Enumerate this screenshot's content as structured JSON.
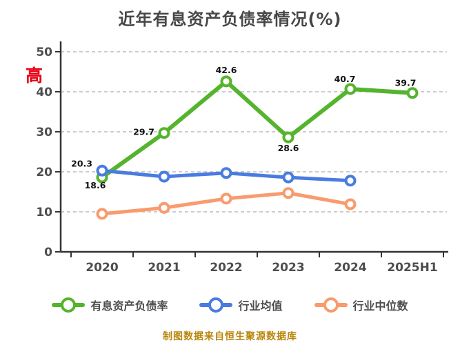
{
  "title": "近年有息资产负债率情况(%)",
  "y_axis_tag": {
    "text": "高",
    "color": "#e60012"
  },
  "caption": "制图数据来自恒生聚源数据库",
  "colors": {
    "title": "#474747",
    "axis": "#333333",
    "tick_text": "#4d4d4d",
    "grid": "#cccccc",
    "point_label": "#111111",
    "caption": "#b8860b"
  },
  "chart_data": {
    "type": "line",
    "title": "近年有息资产负债率情况(%)",
    "xlabel": "",
    "ylabel": "",
    "categories": [
      "2020",
      "2021",
      "2022",
      "2023",
      "2024",
      "2025H1"
    ],
    "ylim": [
      0,
      50
    ],
    "yticks": [
      0,
      10,
      20,
      30,
      40,
      50
    ],
    "grid": true,
    "grid_style": "dashed",
    "legend_position": "bottom",
    "series": [
      {
        "name": "有息资产负债率",
        "color": "#55b42d",
        "line_width": 6,
        "values": [
          18.6,
          29.7,
          42.6,
          28.6,
          40.7,
          39.7
        ],
        "point_labels": [
          {
            "text": "18.6",
            "dx": -10,
            "dy": 16,
            "anchor": "middle"
          },
          {
            "text": "29.7",
            "dx": -14,
            "dy": 3,
            "anchor": "end"
          },
          {
            "text": "42.6",
            "dx": 0,
            "dy": -12,
            "anchor": "middle"
          },
          {
            "text": "28.6",
            "dx": 0,
            "dy": 20,
            "anchor": "middle"
          },
          {
            "text": "40.7",
            "dx": -8,
            "dy": -10,
            "anchor": "middle"
          },
          {
            "text": "39.7",
            "dx": -10,
            "dy": -10,
            "anchor": "middle"
          }
        ]
      },
      {
        "name": "行业均值",
        "color": "#4a7ce0",
        "line_width": 5,
        "values": [
          20.3,
          18.8,
          19.7,
          18.6,
          17.8
        ],
        "point_labels": [
          {
            "text": "20.3",
            "dx": -14,
            "dy": -6,
            "anchor": "end"
          },
          null,
          null,
          null,
          null
        ]
      },
      {
        "name": "行业中位数",
        "color": "#f89b6e",
        "line_width": 5,
        "values": [
          9.5,
          11.0,
          13.3,
          14.7,
          11.9
        ],
        "point_labels": [
          null,
          null,
          null,
          null,
          null
        ]
      }
    ]
  }
}
